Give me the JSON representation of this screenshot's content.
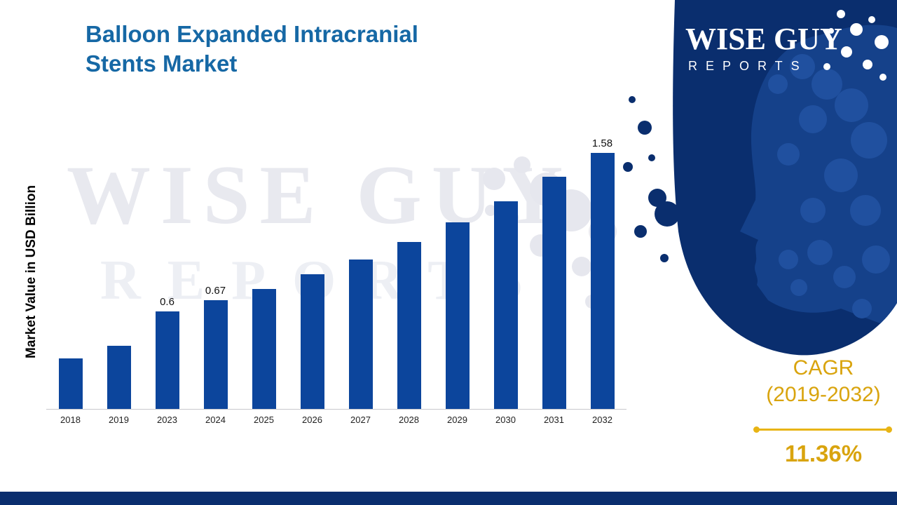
{
  "page": {
    "title_line1": "Balloon Expanded Intracranial",
    "title_line2": "Stents Market"
  },
  "logo": {
    "name": "WISE GUY",
    "reports": "REPORTS"
  },
  "watermark": {
    "line1": "WISE GUY",
    "line2": "REPORTS"
  },
  "stats": {
    "cagr_label": "CAGR",
    "cagr_period": "(2019-2032)",
    "cagr_value": "11.36%"
  },
  "colors": {
    "bar": "#0c459c",
    "panel": "#0a2e6e",
    "title": "#1668a5",
    "gold": "#d9a40e",
    "divider": "#e8b414"
  },
  "chart_data": {
    "type": "bar",
    "title": "Balloon Expanded Intracranial Stents Market",
    "xlabel": "",
    "ylabel": "Market Value in USD Billion",
    "categories": [
      "2018",
      "2019",
      "2023",
      "2024",
      "2025",
      "2026",
      "2027",
      "2028",
      "2029",
      "2030",
      "2031",
      "2032"
    ],
    "values": [
      0.31,
      0.39,
      0.6,
      0.67,
      0.74,
      0.83,
      0.92,
      1.03,
      1.15,
      1.28,
      1.43,
      1.58
    ],
    "data_labels": [
      "",
      "",
      "0.6",
      "0.67",
      "",
      "",
      "",
      "",
      "",
      "",
      "",
      "1.58"
    ],
    "ylim": [
      0,
      1.7
    ],
    "grid": false,
    "legend": "none",
    "bar_color": "#0c459c"
  }
}
